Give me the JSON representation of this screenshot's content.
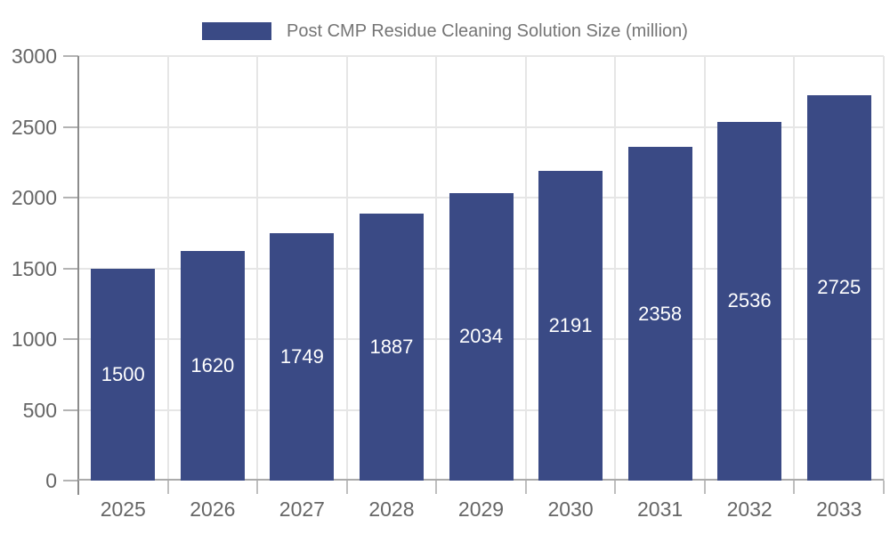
{
  "legend": {
    "label": "Post CMP Residue Cleaning Solution Size (million)"
  },
  "colors": {
    "bar": "#3a4a85",
    "grid": "#e6e6e6",
    "axis_line": "#8c8c8c",
    "baseline": "#ababab",
    "tick_label": "#666666",
    "legend_text": "#757575",
    "value_label": "#ffffff",
    "background": "#ffffff"
  },
  "chart_data": {
    "type": "bar",
    "title": "Post CMP Residue Cleaning Solution Size (million)",
    "series_name": "Post CMP Residue Cleaning Solution Size (million)",
    "categories": [
      "2025",
      "2026",
      "2027",
      "2028",
      "2029",
      "2030",
      "2031",
      "2032",
      "2033"
    ],
    "values": [
      1500,
      1620,
      1749,
      1887,
      2034,
      2191,
      2358,
      2536,
      2725
    ],
    "xlabel": "",
    "ylabel": "",
    "ylim": [
      0,
      3000
    ],
    "yticks": [
      0,
      500,
      1000,
      1500,
      2000,
      2500,
      3000
    ],
    "grid": true,
    "legend_position": "top",
    "bar_color": "#3a4a85",
    "value_labels_shown": true,
    "value_label_position": "center"
  }
}
